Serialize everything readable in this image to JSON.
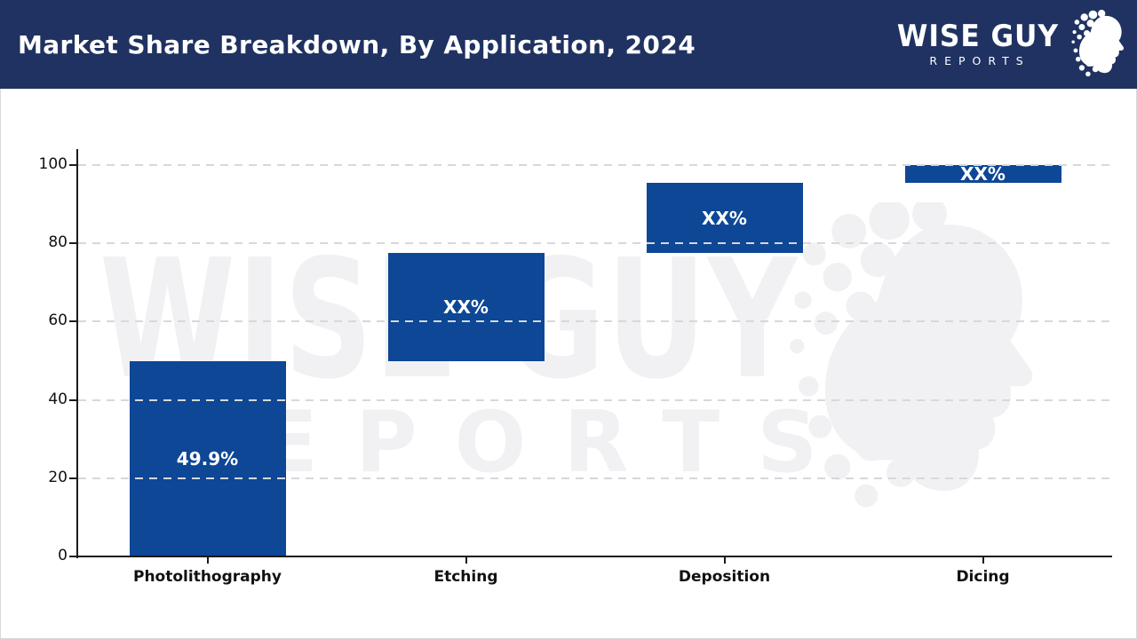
{
  "header": {
    "title": "Market Share Breakdown, By Application, 2024",
    "logo": {
      "line1": "WISE GUY",
      "line2": "REPORTS"
    }
  },
  "watermark": {
    "line1": "WISE GUY",
    "line2": "REPORTS"
  },
  "colors": {
    "header_bg": "#1f3261",
    "title_text": "#ffffff",
    "bar_fill": "#0d4796",
    "bar_label_text": "#ffffff",
    "axis": "#1a1a1a",
    "gridline": "#d6d8db",
    "watermark": "#f1f1f3"
  },
  "chart_data": {
    "type": "bar",
    "subtype": "waterfall",
    "title": "Market Share Breakdown, By Application, 2024",
    "categories": [
      "Photolithography",
      "Etching",
      "Deposition",
      "Dicing"
    ],
    "segments": [
      {
        "category": "Photolithography",
        "start": 0,
        "end": 49.9,
        "label": "49.9%"
      },
      {
        "category": "Etching",
        "start": 49.9,
        "end": 77.5,
        "label": "XX%"
      },
      {
        "category": "Deposition",
        "start": 77.5,
        "end": 95.5,
        "label": "XX%"
      },
      {
        "category": "Dicing",
        "start": 95.5,
        "end": 100,
        "label": "XX%"
      }
    ],
    "yticks": [
      0,
      20,
      40,
      60,
      80,
      100
    ],
    "ylim": [
      0,
      105
    ],
    "grid": "dashed-horizontal",
    "legend": "none",
    "xlabel": "",
    "ylabel": ""
  }
}
